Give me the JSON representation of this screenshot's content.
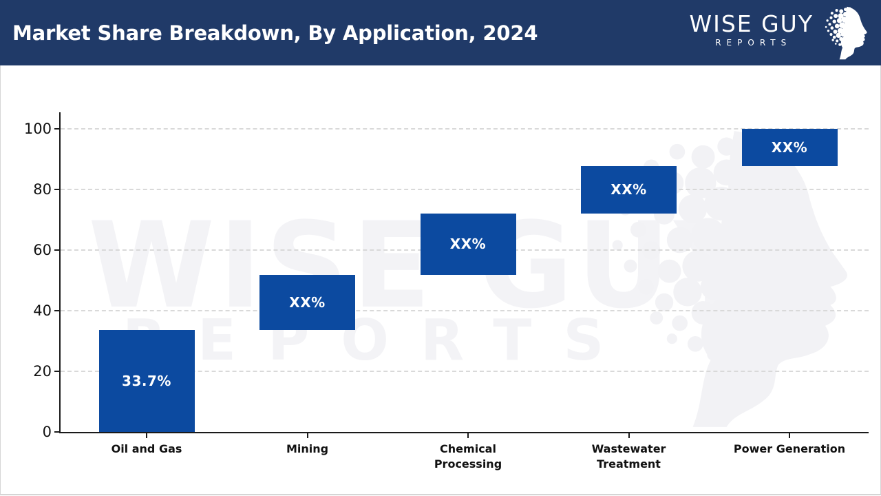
{
  "header": {
    "title": "Market Share Breakdown, By Application, 2024",
    "logo": {
      "line1": "WISE GUY",
      "line2": "REPORTS"
    }
  },
  "watermark": {
    "line1": "WISE GUY",
    "line2": "REPORTS"
  },
  "chart_data": {
    "type": "bar",
    "subtype": "waterfall",
    "title": "Market Share Breakdown, By Application, 2024",
    "xlabel": "",
    "ylabel": "",
    "categories": [
      "Oil and Gas",
      "Mining",
      "Chemical Processing",
      "Wastewater Treatment",
      "Power Generation"
    ],
    "segments": [
      {
        "category": "Oil and Gas",
        "start": 0,
        "end": 33.7,
        "label": "33.7%"
      },
      {
        "category": "Mining",
        "start": 33.7,
        "end": 51.8,
        "label": "XX%"
      },
      {
        "category": "Chemical Processing",
        "start": 51.8,
        "end": 72.1,
        "label": "XX%"
      },
      {
        "category": "Wastewater Treatment",
        "start": 72.1,
        "end": 87.7,
        "label": "XX%"
      },
      {
        "category": "Power Generation",
        "start": 87.7,
        "end": 100,
        "label": "XX%"
      }
    ],
    "y_ticks": [
      0,
      20,
      40,
      60,
      80,
      100
    ],
    "ylim": [
      0,
      105.5
    ],
    "grid": "horizontal-dashed",
    "legend": "none",
    "colors": {
      "bar": "#0c4aa0",
      "bar_label": "#ffffff",
      "header_bg": "#203a68",
      "grid": "#d9d9d9",
      "axis": "#1a1a1a",
      "watermark": "#f3f3f6"
    }
  }
}
